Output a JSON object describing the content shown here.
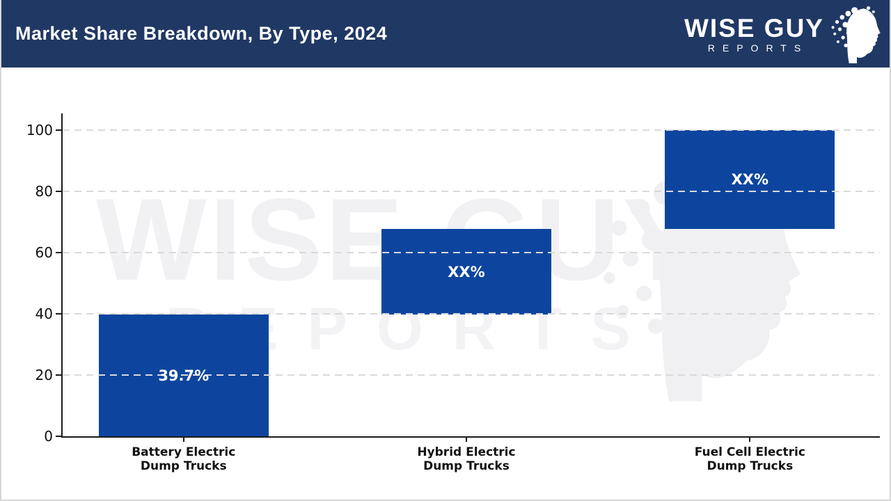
{
  "header": {
    "title": "Market Share Breakdown, By Type, 2024",
    "bg_color": "#203864",
    "logo": {
      "line1": "WISE GUY",
      "line2": "REPORTS"
    }
  },
  "watermark": {
    "line1": "WISE GUY",
    "line2": "REPORTS"
  },
  "chart_data": {
    "type": "bar",
    "subtype": "waterfall",
    "title": "Market Share Breakdown, By Type, 2024",
    "categories": [
      "Battery Electric\nDump Trucks",
      "Hybrid Electric\nDump Trucks",
      "Fuel Cell Electric\nDump Trucks"
    ],
    "segments": [
      {
        "category": "Battery Electric Dump Trucks",
        "start": 0,
        "end": 39.7,
        "label": "39.7%"
      },
      {
        "category": "Hybrid Electric Dump Trucks",
        "start": 39.7,
        "end": 67.7,
        "label": "XX%"
      },
      {
        "category": "Fuel Cell Electric Dump Trucks",
        "start": 67.7,
        "end": 100,
        "label": "XX%"
      }
    ],
    "bar_color": "#0d459e",
    "bar_label_color": "#ffffff",
    "yticks": [
      0,
      20,
      40,
      60,
      80,
      100
    ],
    "ylim": [
      0,
      100
    ],
    "xlabel": "",
    "ylabel": "",
    "grid": "horizontal-dashed",
    "grid_color": "#d9d9d9",
    "legend": "none"
  }
}
